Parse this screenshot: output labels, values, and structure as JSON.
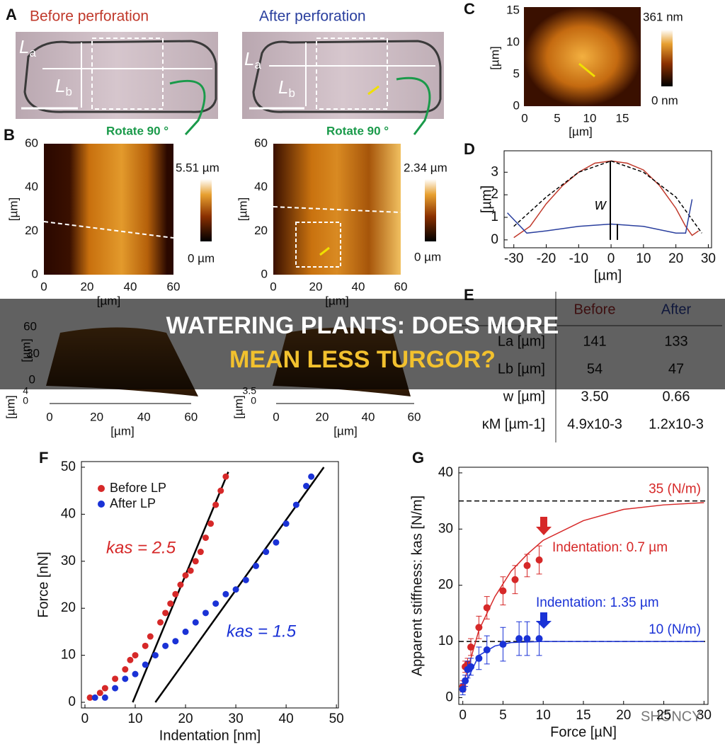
{
  "banner": {
    "line1": "WATERING PLANTS: DOES MORE",
    "line2": "MEAN LESS TURGOR?"
  },
  "watermark": "SHONCY",
  "panel_a": {
    "letter": "A",
    "before": "Before perforation",
    "after": "After perforation",
    "la": {
      "symbol": "L",
      "sub": "a"
    },
    "lb": {
      "symbol": "L",
      "sub": "b"
    },
    "rotate_left": "Rotate 90 °",
    "rotate_right": "Rotate 90 °"
  },
  "panel_b": {
    "letter": "B",
    "xticks": [
      0,
      20,
      40,
      60
    ],
    "yticks": [
      0,
      20,
      40,
      60
    ],
    "unit": "[µm]",
    "left_max": "5.51 µm",
    "left_min": "0 µm",
    "right_max": "2.34 µm",
    "right_min": "0 µm"
  },
  "panel_c": {
    "letter": "C",
    "xticks": [
      0,
      5,
      10,
      15
    ],
    "yticks": [
      0,
      5,
      10,
      15
    ],
    "unit": "[µm]",
    "max": "361 nm",
    "min": "0 nm"
  },
  "panel_e": {
    "letter": "E",
    "columns": [
      "Before",
      "After"
    ],
    "rows": [
      {
        "label": "La [µm]",
        "values": [
          "141",
          "133"
        ]
      },
      {
        "label": "Lb [µm]",
        "values": [
          "54",
          "47"
        ]
      },
      {
        "label": "w [µm]",
        "values": [
          "3.50",
          "0.66"
        ]
      },
      {
        "label": "κM [µm-1]",
        "values": [
          "4.9x10-3",
          "1.2x10-3"
        ]
      }
    ]
  },
  "surfaces": {
    "left": {
      "yticks": [
        60,
        30,
        0
      ],
      "zticks": [
        4,
        0
      ],
      "xticks": [
        0,
        20,
        40,
        60
      ],
      "unit": "[µm]"
    },
    "right": {
      "zticks": [
        3.5,
        0
      ],
      "xticks": [
        0,
        20,
        40,
        60
      ],
      "unit": "[µm]"
    }
  },
  "chart_data": [
    {
      "type": "line",
      "panel": "D",
      "x_label": "[µm]",
      "y_label": "[µm]",
      "annotation": "w",
      "xlim": [
        -33,
        31
      ],
      "ylim": [
        -0.35,
        3.95
      ],
      "xticks": [
        -30,
        -20,
        -10,
        0,
        10,
        20,
        30
      ],
      "yticks": [
        0,
        1,
        2,
        3
      ],
      "series": [
        {
          "color": "#c0392b",
          "dashed": false,
          "x": [
            -30,
            -25,
            -20,
            -15,
            -10,
            -5,
            0,
            5,
            10,
            15,
            20,
            23,
            25,
            27
          ],
          "values": [
            0.1,
            0.6,
            1.6,
            2.4,
            3.0,
            3.4,
            3.5,
            3.4,
            3.1,
            2.4,
            1.4,
            0.6,
            0.2,
            0.4
          ]
        },
        {
          "color": "#000000",
          "dashed": true,
          "x": [
            -30,
            -20,
            -10,
            0,
            10,
            20,
            28
          ],
          "values": [
            0.6,
            1.9,
            3.0,
            3.5,
            3.0,
            1.9,
            0.3
          ]
        },
        {
          "color": "#2a3f9e",
          "dashed": false,
          "x": [
            -32,
            -26,
            -20,
            -10,
            0,
            10,
            20,
            23,
            25
          ],
          "values": [
            1.2,
            0.3,
            0.4,
            0.6,
            0.7,
            0.6,
            0.3,
            0.3,
            1.8
          ]
        }
      ]
    },
    {
      "type": "scatter",
      "panel": "F",
      "x_label": "Indentation [nm]",
      "y_label": "Force [nN]",
      "xlim": [
        -0.7,
        50.4
      ],
      "ylim": [
        -1.2,
        51.2
      ],
      "xticks": [
        0,
        10,
        20,
        30,
        40,
        50
      ],
      "yticks": [
        0,
        10,
        20,
        30,
        40,
        50
      ],
      "legend": "top-left",
      "series": [
        {
          "name": "Before LP",
          "color": "#d62828",
          "x": [
            1,
            3,
            4,
            6,
            8,
            9,
            10,
            12,
            13,
            15,
            16,
            17,
            18,
            19,
            20,
            21,
            22,
            23,
            24,
            25,
            26,
            27,
            28
          ],
          "values": [
            1,
            2,
            3,
            5,
            7,
            9,
            10,
            12,
            14,
            17,
            19,
            21,
            23,
            25,
            27,
            28,
            30,
            32,
            35,
            38,
            42,
            45,
            48
          ]
        },
        {
          "name": "After LP",
          "color": "#1a32d6",
          "x": [
            2,
            4,
            6,
            8,
            10,
            12,
            14,
            16,
            18,
            20,
            22,
            24,
            26,
            28,
            30,
            32,
            34,
            36,
            38,
            40,
            42,
            44,
            45
          ],
          "values": [
            1,
            1,
            3,
            5,
            6,
            8,
            10,
            12,
            13,
            15,
            17,
            19,
            21,
            23,
            24,
            26,
            29,
            32,
            34,
            38,
            42,
            46,
            48
          ]
        }
      ],
      "fits": [
        {
          "x": [
            9.5,
            28.5
          ],
          "y": [
            0,
            49
          ]
        },
        {
          "x": [
            14,
            47.5
          ],
          "y": [
            0,
            50
          ]
        }
      ],
      "annotations": [
        {
          "text": "kas = 2.5",
          "color": "#d62828"
        },
        {
          "text": "kas = 1.5",
          "color": "#1a32d6"
        }
      ]
    },
    {
      "type": "scatter",
      "panel": "G",
      "x_label": "Force [µN]",
      "y_label": "Apparent stiffness: kas [N/m]",
      "xlim": [
        -0.5,
        30.5
      ],
      "ylim": [
        -1.2,
        41
      ],
      "xticks": [
        0,
        5,
        10,
        15,
        20,
        25,
        30
      ],
      "yticks": [
        0,
        10,
        20,
        30,
        40
      ],
      "series": [
        {
          "color": "#d62828",
          "x": [
            0,
            0.3,
            0.6,
            1,
            2,
            3,
            5,
            6.5,
            8,
            9.5
          ],
          "values": [
            2,
            5.5,
            6,
            9,
            12.5,
            16,
            19,
            21,
            23.5,
            24.5
          ],
          "errors": [
            1,
            1,
            1,
            1.5,
            2,
            2,
            2.5,
            2.5,
            2,
            2.5
          ],
          "curve": {
            "x": [
              0,
              2,
              4,
              6,
              8,
              10,
              15,
              20,
              25,
              30
            ],
            "y": [
              2,
              12,
              18,
              22.5,
              25.5,
              28,
              31.5,
              33.5,
              34.3,
              34.7
            ]
          }
        },
        {
          "color": "#1a32d6",
          "x": [
            0,
            0.3,
            0.6,
            1,
            2,
            3,
            5,
            7,
            8,
            9.5
          ],
          "values": [
            1.5,
            3,
            5,
            5.5,
            7,
            8.5,
            9.5,
            10.5,
            10.5,
            10.5
          ],
          "errors": [
            1,
            1,
            1.5,
            1.5,
            2,
            2.5,
            3,
            3,
            3,
            3
          ],
          "curve": {
            "x": [
              0,
              2,
              4,
              6,
              10,
              30
            ],
            "y": [
              1.5,
              7.5,
              9.2,
              9.8,
              10,
              10
            ]
          }
        }
      ],
      "reference_lines": [
        {
          "value": 35,
          "label": "35 (N/m)",
          "color": "#d62828"
        },
        {
          "value": 10,
          "label": "10 (N/m)",
          "color": "#1a32d6"
        }
      ],
      "annotations": [
        {
          "text": "Indentation: 0.7 µm",
          "color": "#d62828"
        },
        {
          "text": "Indentation: 1.35 µm",
          "color": "#1a32d6"
        }
      ]
    }
  ]
}
